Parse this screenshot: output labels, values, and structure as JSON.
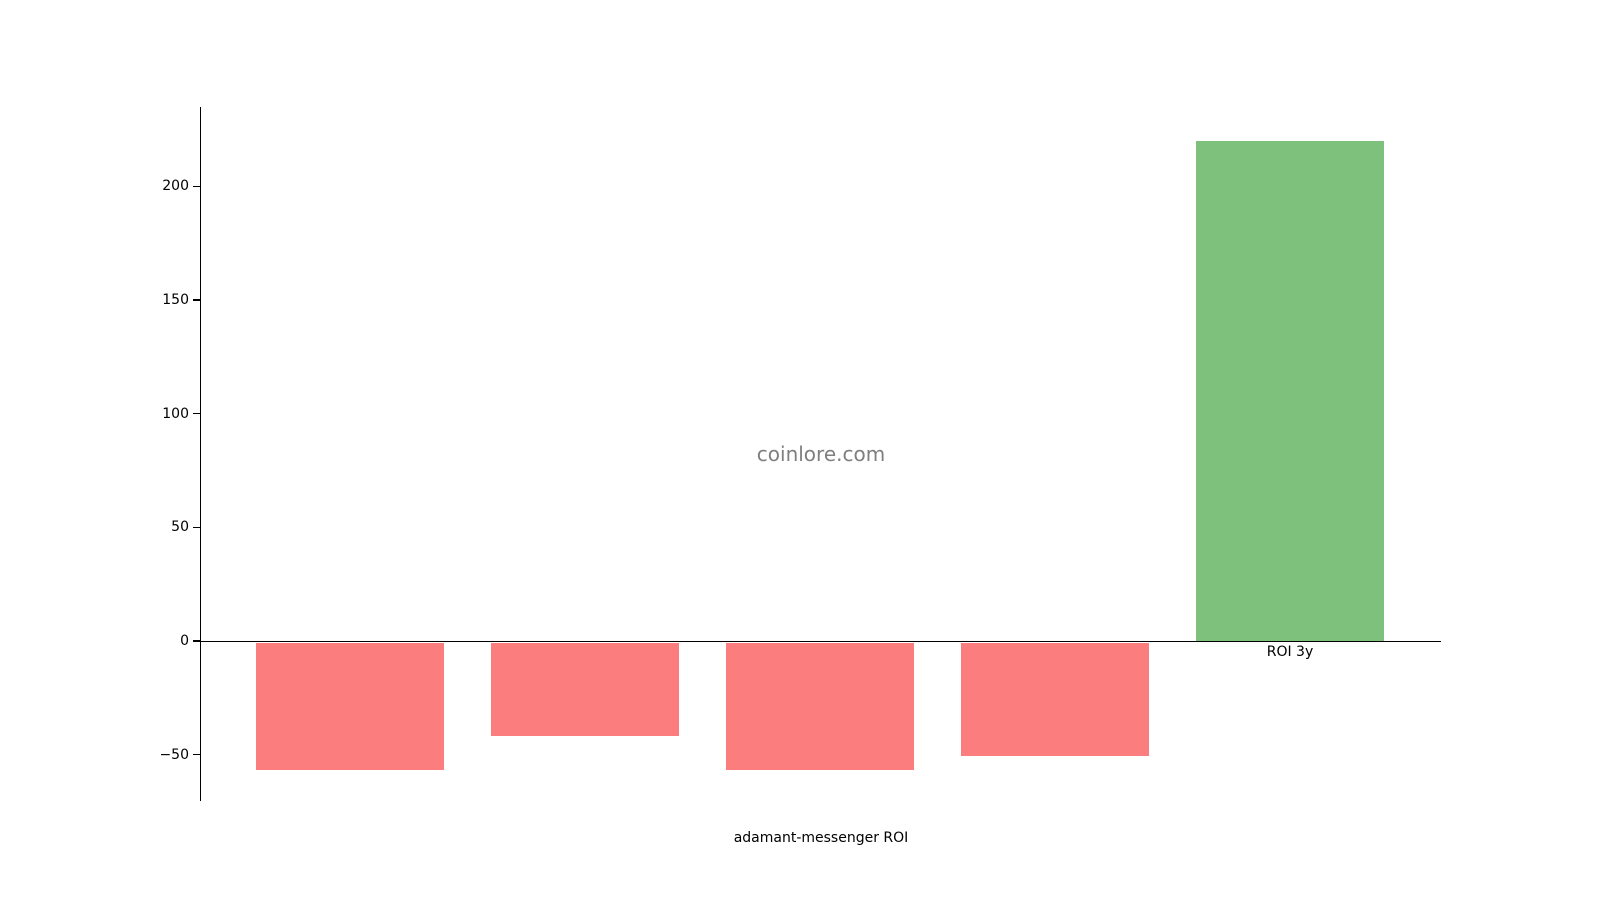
{
  "watermark": {
    "text": "coinlore.com",
    "color": "#7f7f7f"
  },
  "chart_data": {
    "type": "bar",
    "title": "",
    "xlabel": "adamant-messenger ROI",
    "ylabel": "",
    "categories": [
      "",
      "",
      "",
      "",
      "ROI 3y"
    ],
    "values": [
      -56,
      -41,
      -56,
      -50,
      220
    ],
    "yticks": [
      -50,
      0,
      50,
      100,
      150,
      200
    ],
    "ylim": [
      -70,
      235
    ],
    "grid": false,
    "legend_position": "none",
    "colors": {
      "negative_bar": "#fc7d7d",
      "positive_bar": "#7dc17d",
      "axis": "#000000",
      "tick_label": "#000000",
      "watermark": "#7f7f7f"
    }
  }
}
